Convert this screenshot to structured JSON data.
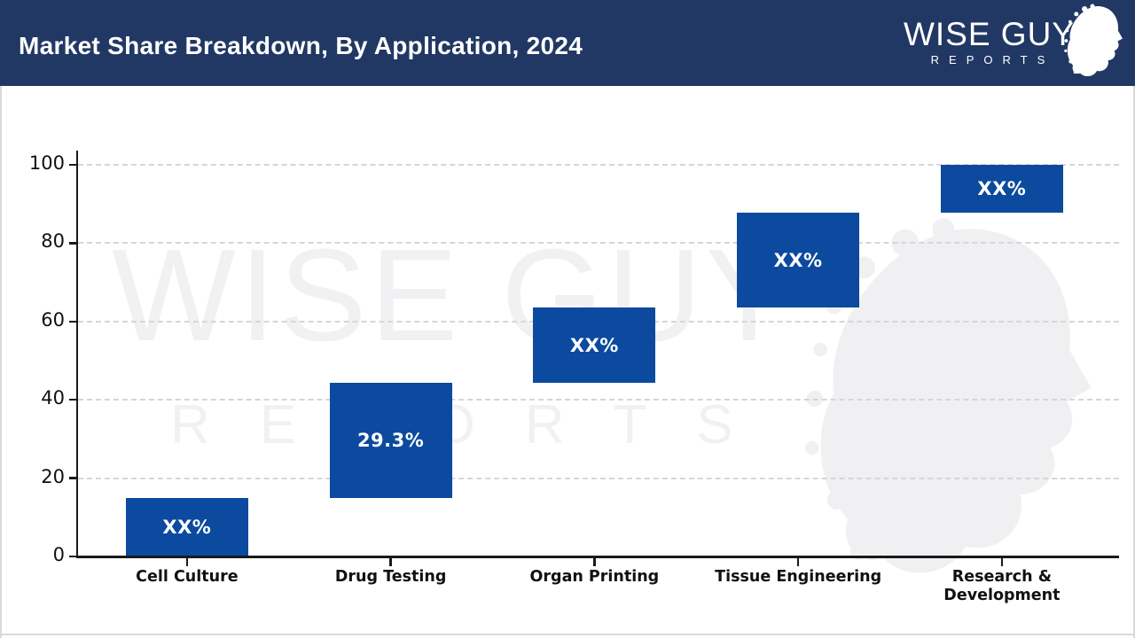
{
  "header": {
    "title": "Market Share Breakdown, By Application, 2024",
    "background_color": "#213864",
    "logo": {
      "name": "WISE GUY",
      "subtitle": "REPORTS"
    }
  },
  "watermark": {
    "name": "WISE GUY",
    "subtitle": "REPORTS",
    "color": "#f1f1f3"
  },
  "chart_data": {
    "type": "bar",
    "subtype": "waterfall (floating cumulative segments, left to right)",
    "title": "Market Share Breakdown, By Application, 2024",
    "categories": [
      "Cell Culture",
      "Drug Testing",
      "Organ Printing",
      "Tissue Engineering",
      "Research & Development"
    ],
    "values": [
      15.0,
      29.3,
      19.2,
      24.3,
      12.2
    ],
    "segment_start": [
      0,
      15.0,
      44.3,
      63.5,
      87.8
    ],
    "segment_end": [
      15.0,
      44.3,
      63.5,
      87.8,
      100.0
    ],
    "bar_labels": [
      "XX%",
      "29.3%",
      "XX%",
      "XX%",
      "XX%"
    ],
    "xlabel": "",
    "ylabel": "",
    "ylim": [
      0,
      100
    ],
    "yticks": [
      0,
      20,
      40,
      60,
      80,
      100
    ],
    "grid": "horizontal dashed",
    "legend": "none",
    "gridline_color": "#d6d6d6",
    "bar_color": "#0b4a9e",
    "bar_label_color": "#ffffff",
    "axis_color": "#1a1a1a"
  }
}
